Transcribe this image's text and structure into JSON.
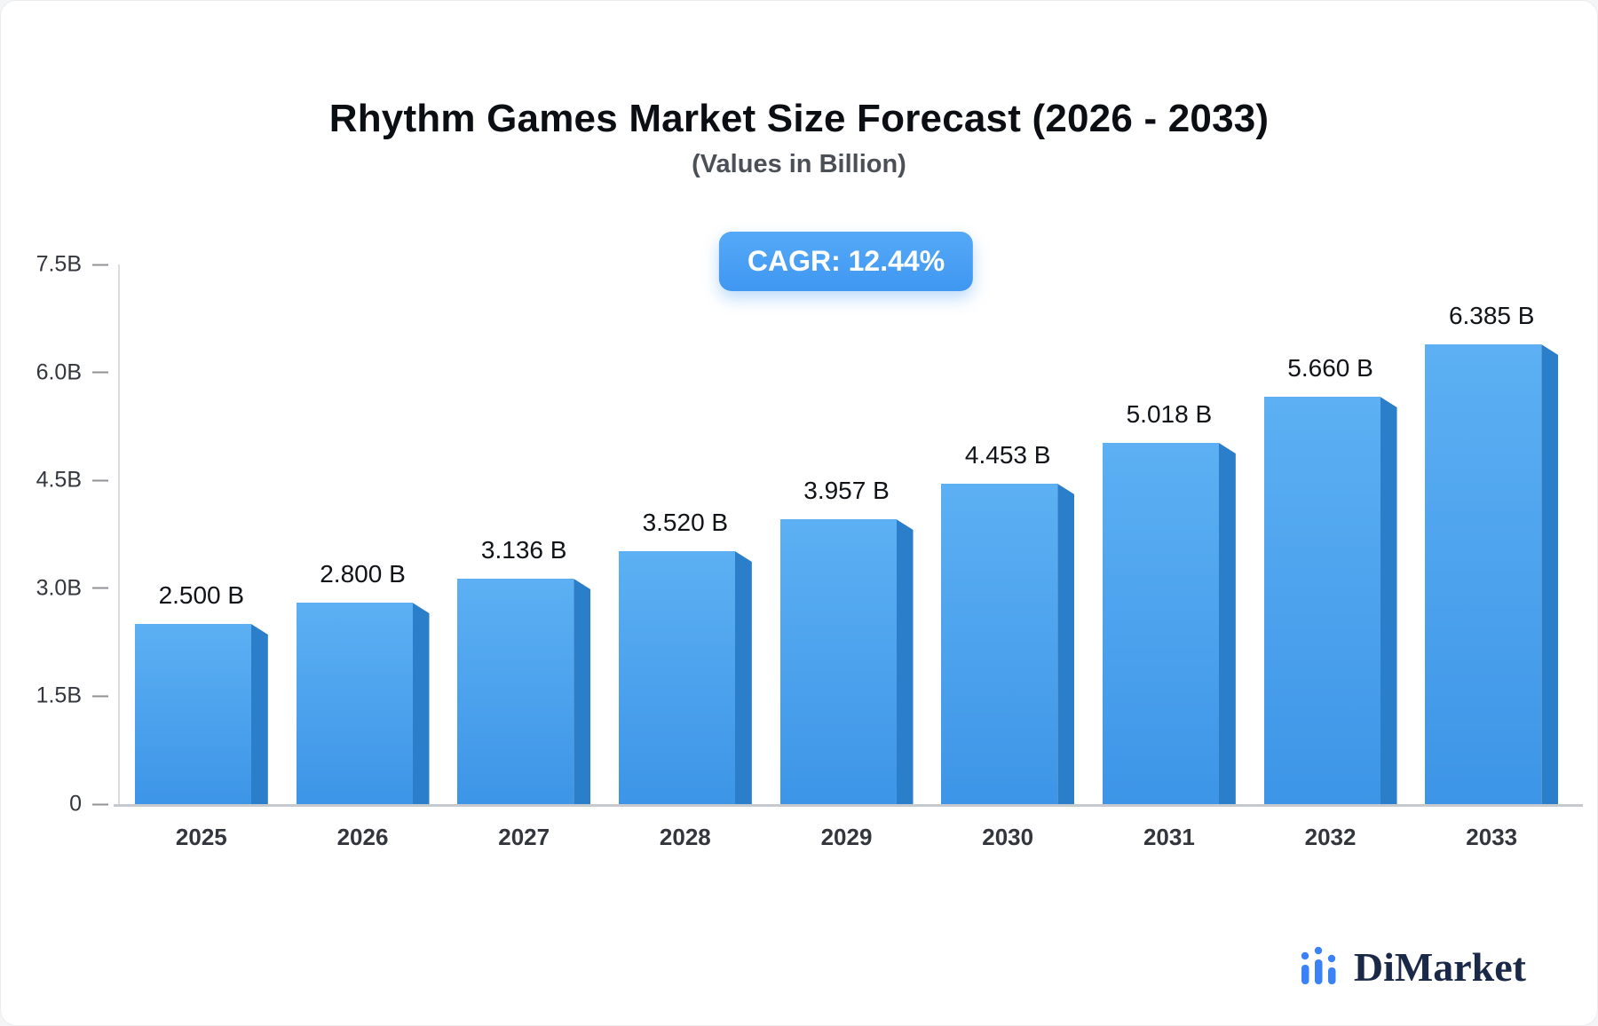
{
  "header": {
    "title": "Rhythm Games Market Size Forecast (2026 - 2033)",
    "subtitle": "(Values in Billion)",
    "cagr_label": "CAGR: 12.44%"
  },
  "brand": {
    "name": "DiMarket",
    "icon": "bar-chart-logo-icon"
  },
  "colors": {
    "bar_fill_top": "#5cb0f3",
    "bar_fill_bottom": "#3d95e7",
    "bar_side": "#2b7ec9",
    "badge_bg": "#459ef4",
    "badge_text": "#ffffff",
    "brand_text": "#1a2948",
    "brand_icon": "#3b82f6"
  },
  "chart_data": {
    "type": "bar",
    "title": "Rhythm Games Market Size Forecast (2026 - 2033)",
    "subtitle": "(Values in Billion)",
    "categories": [
      "2025",
      "2026",
      "2027",
      "2028",
      "2029",
      "2030",
      "2031",
      "2032",
      "2033"
    ],
    "values": [
      2.5,
      2.8,
      3.136,
      3.52,
      3.957,
      4.453,
      5.018,
      5.66,
      6.385
    ],
    "labels": [
      "2.500 B",
      "2.800 B",
      "3.136 B",
      "3.520 B",
      "3.957 B",
      "4.453 B",
      "5.018 B",
      "5.660 B",
      "6.385 B"
    ],
    "xlabel": "",
    "ylabel": "",
    "ylim": [
      0,
      7.5
    ],
    "yticks": [
      {
        "value": 0,
        "label": "0"
      },
      {
        "value": 1.5,
        "label": "1.5B"
      },
      {
        "value": 3.0,
        "label": "3.0B"
      },
      {
        "value": 4.5,
        "label": "4.5B"
      },
      {
        "value": 6.0,
        "label": "6.0B"
      },
      {
        "value": 7.5,
        "label": "7.5B"
      }
    ],
    "grid": false,
    "legend": false,
    "annotation": "CAGR: 12.44%"
  }
}
